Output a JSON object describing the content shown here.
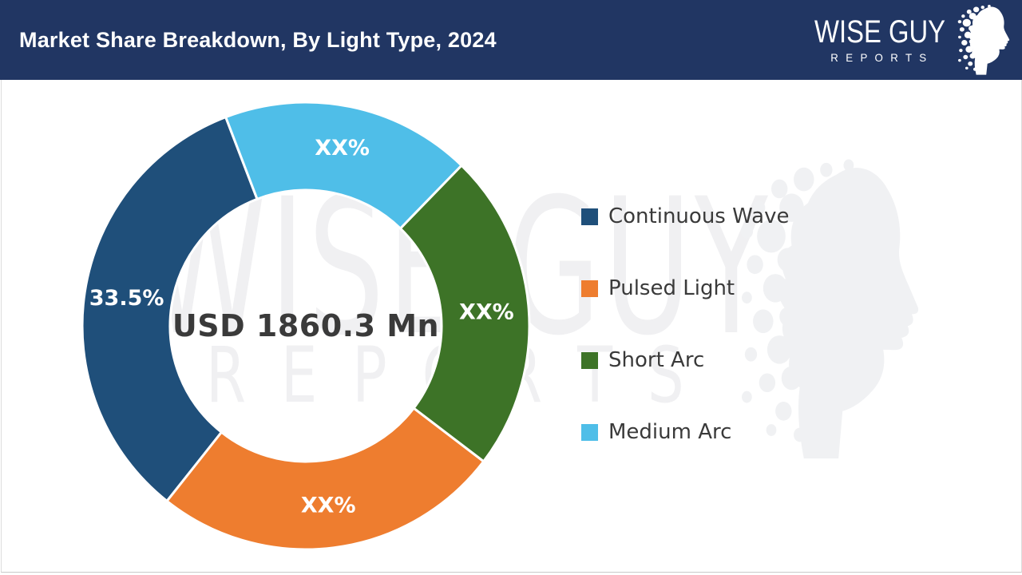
{
  "header": {
    "title": "Market Share Breakdown, By Light Type, 2024",
    "bg_color": "#213663",
    "logo": {
      "name": "WISE GUY",
      "tagline": "R E P O R T S"
    }
  },
  "watermark": {
    "word1": "WISE GUY",
    "word2": "R E P O R T S"
  },
  "chart_data": {
    "type": "donut",
    "title": "Market Share Breakdown, By Light Type, 2024",
    "center_label": "USD 1860.3 Mn",
    "start_angle_deg": -21,
    "direction": "counterclockwise",
    "outer_radius_px": 280,
    "inner_radius_px": 170,
    "label_radius_px": 227,
    "gap_color": "#ffffff",
    "legend_position": "right",
    "segments": [
      {
        "name": "Continuous Wave",
        "value_pct": 33.5,
        "slice_label": "33.5%",
        "color": "#1f4f7a"
      },
      {
        "name": "Pulsed Light",
        "value_pct": 25.3,
        "slice_label": "XX%",
        "color": "#ee7d2f"
      },
      {
        "name": "Short Arc",
        "value_pct": 23.1,
        "slice_label": "XX%",
        "color": "#3d7327"
      },
      {
        "name": "Medium Arc",
        "value_pct": 18.1,
        "slice_label": "XX%",
        "color": "#4fbee8"
      }
    ]
  }
}
